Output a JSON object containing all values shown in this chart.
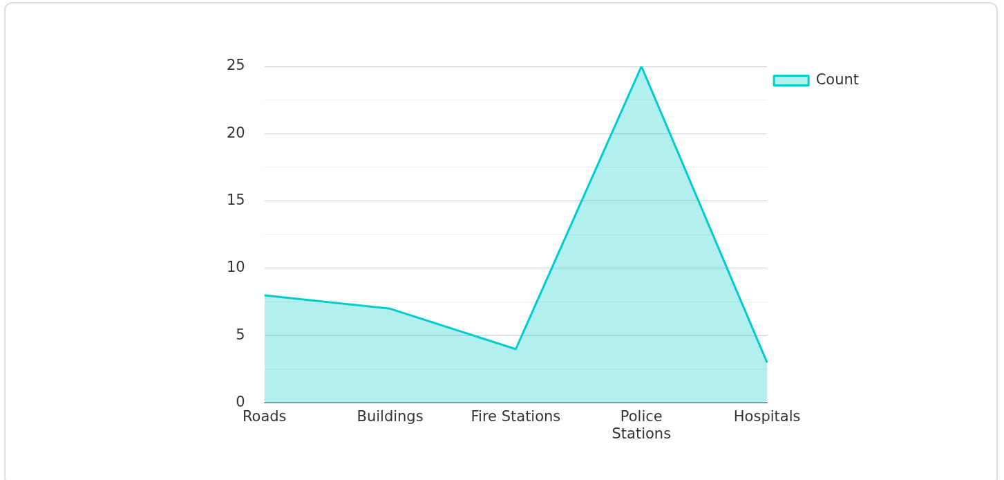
{
  "chart_data": {
    "type": "area",
    "categories": [
      "Roads",
      "Buildings",
      "Fire Stations",
      "Police Stations",
      "Hospitals"
    ],
    "series": [
      {
        "name": "Count",
        "color": "#00cccc",
        "values": [
          8,
          7,
          4,
          25,
          3
        ]
      }
    ],
    "ylim": [
      0,
      25
    ],
    "yticks": [
      0,
      {
        "value": 2.5,
        "label": null
      },
      5,
      {
        "value": 7.5,
        "label": null
      },
      10,
      {
        "value": 12.5,
        "label": null
      },
      15,
      {
        "value": 17.5,
        "label": null
      },
      20,
      {
        "value": 22.5,
        "label": null
      },
      25
    ],
    "grid": "y",
    "legend": "top right",
    "marker": "none",
    "line_style": "solid"
  }
}
